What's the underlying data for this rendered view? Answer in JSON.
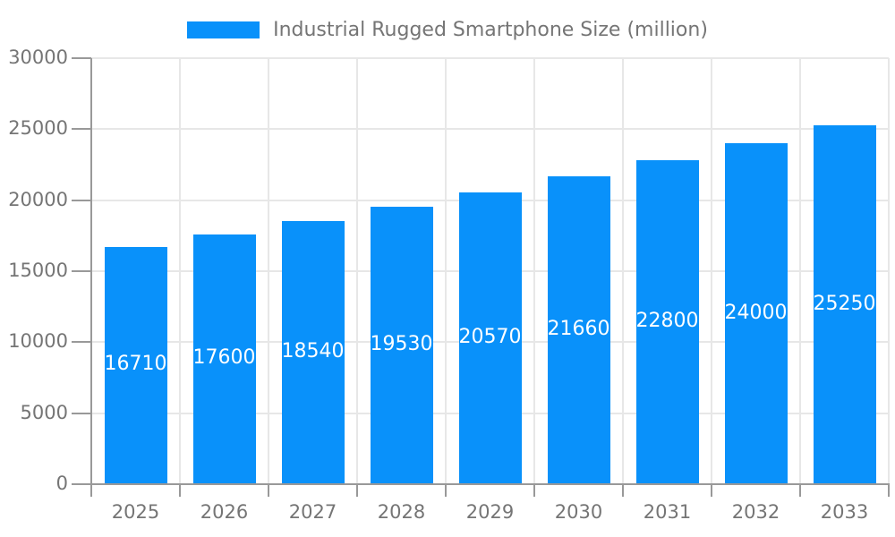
{
  "legend": {
    "label": "Industrial Rugged Smartphone Size (million)"
  },
  "colors": {
    "bar": "#0991fa",
    "grid": "#e7e7e7",
    "axis": "#999999",
    "tick_text": "#757575",
    "bar_label_text": "#ffffff"
  },
  "chart_data": {
    "type": "bar",
    "title": "Industrial Rugged Smartphone Size (million)",
    "categories": [
      "2025",
      "2026",
      "2027",
      "2028",
      "2029",
      "2030",
      "2031",
      "2032",
      "2033"
    ],
    "values": [
      16710,
      17600,
      18540,
      19530,
      20570,
      21660,
      22800,
      24000,
      25250
    ],
    "xlabel": "",
    "ylabel": "",
    "ylim": [
      0,
      30000
    ],
    "yticks": [
      0,
      5000,
      10000,
      15000,
      20000,
      25000,
      30000
    ],
    "grid": true,
    "legend_position": "top",
    "data_labels": "inside-center-white"
  }
}
